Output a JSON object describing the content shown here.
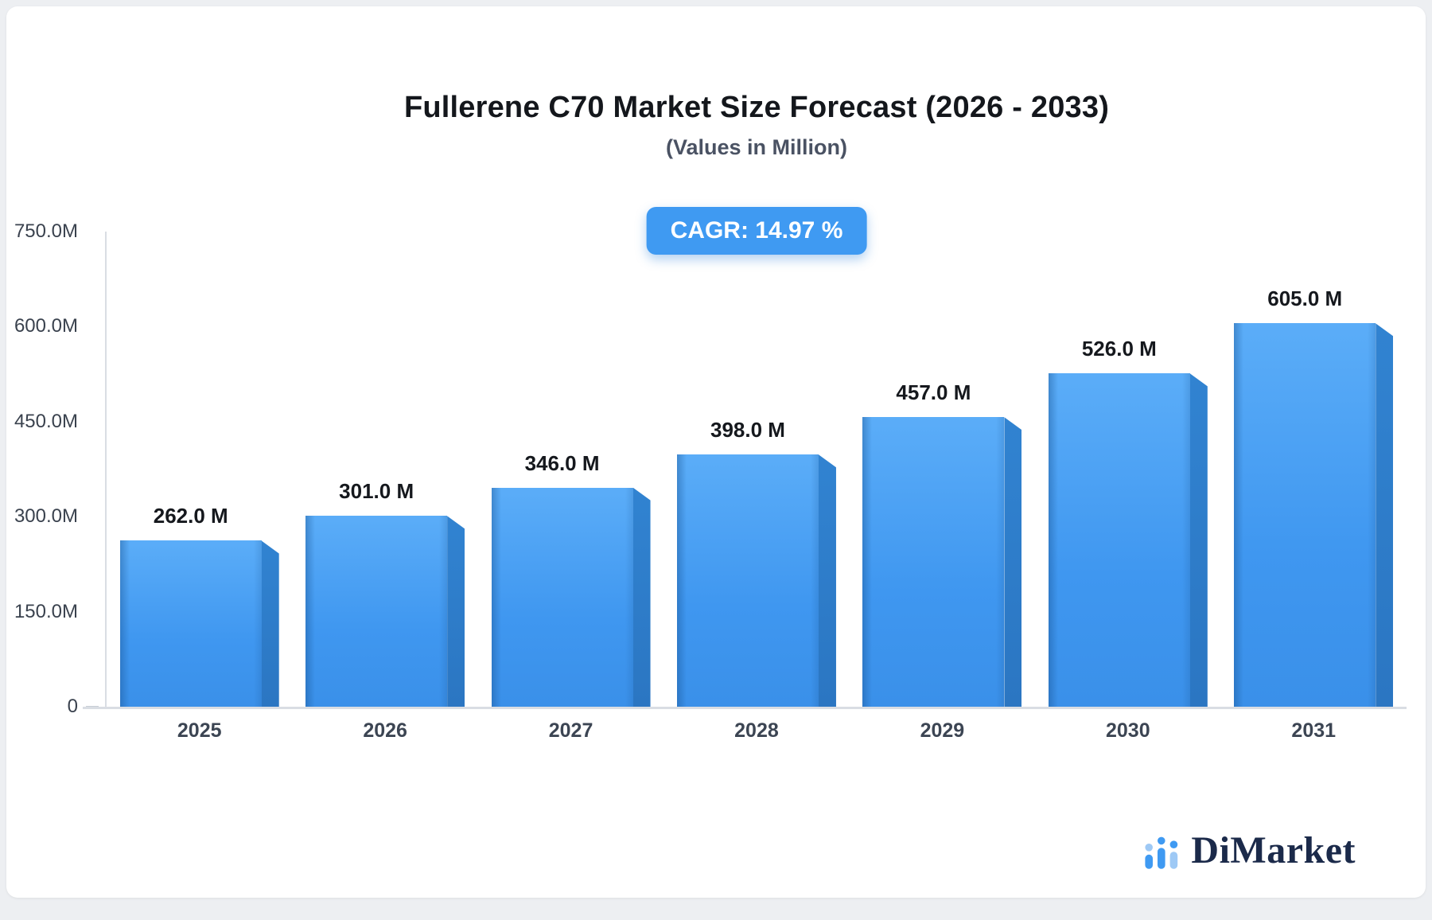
{
  "header": {
    "title": "Fullerene C70 Market Size Forecast (2026 - 2033)",
    "subtitle": "(Values in Million)",
    "cagr_badge": "CAGR: 14.97 %"
  },
  "chart_data": {
    "type": "bar",
    "title": "Fullerene C70 Market Size Forecast (2026 - 2033)",
    "subtitle": "(Values in Million)",
    "cagr_percent": 14.97,
    "categories": [
      "2025",
      "2026",
      "2027",
      "2028",
      "2029",
      "2030",
      "2031"
    ],
    "values": [
      262.0,
      301.0,
      346.0,
      398.0,
      457.0,
      526.0,
      605.0
    ],
    "value_labels": [
      "262.0 M",
      "301.0 M",
      "346.0 M",
      "398.0 M",
      "457.0 M",
      "526.0 M",
      "605.0 M"
    ],
    "y_ticks": [
      "750.0M",
      "600.0M",
      "450.0M",
      "300.0M",
      "150.0M",
      "0"
    ],
    "ylim": [
      0,
      750
    ],
    "grid": false,
    "legend": "none"
  },
  "branding": {
    "logo_text": "DiMarket",
    "logo_icon": "bar-chart-icon"
  },
  "colors": {
    "accent": "#3f9af2",
    "bar_face": "#3f97f0",
    "bar_face_light": "#5badf8",
    "bar_side": "#2b76c2",
    "badge_bg": "#3f9af2",
    "badge_text": "#ffffff",
    "title": "#14171c",
    "logo_navy": "#1b2a4a",
    "axis_line": "#d9dde3"
  }
}
